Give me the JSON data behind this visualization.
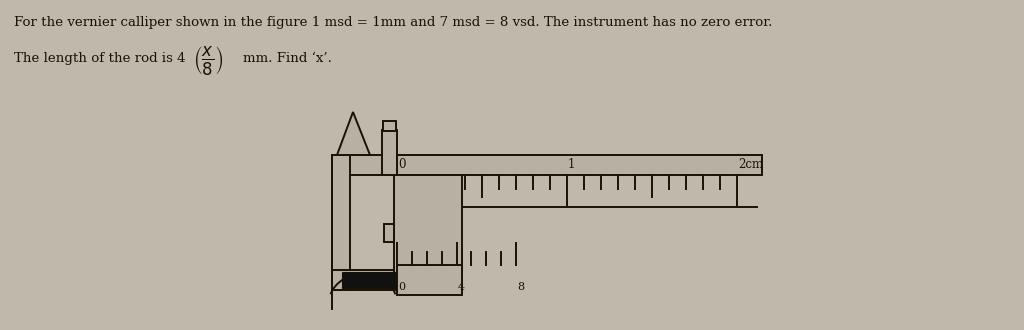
{
  "bg_color": "#c0b8aa",
  "text_color": "#1a1208",
  "caliper_stroke": "#1a1208",
  "caliper_fill": "#b8b0a2",
  "main_scale_labels": [
    "0",
    "1",
    "2cm"
  ],
  "vernier_scale_labels": [
    "0",
    "4",
    "8"
  ],
  "line1": "For the vernier calliper shown in the figure 1 msd = 1mm and 7 msd = 8 vsd. The instrument has no zero error.",
  "line2_pre": "The length of the rod is 4 ",
  "line2_post": " mm. Find ‘x’.",
  "fig_width": 10.24,
  "fig_height": 3.3,
  "dpi": 100
}
